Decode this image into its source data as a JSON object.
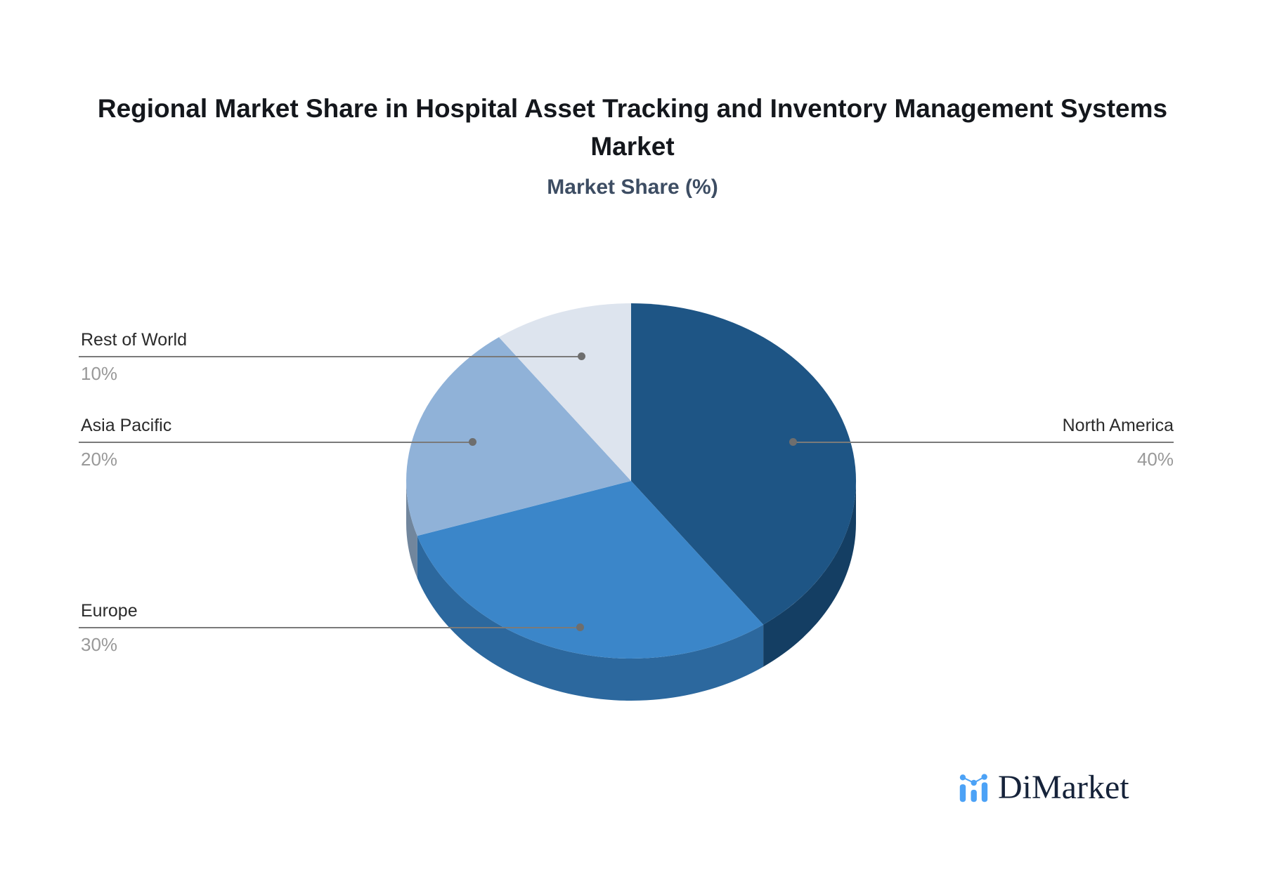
{
  "header": {
    "title_line1": "Regional Market Share in Hospital Asset Tracking and Inventory Management Systems",
    "title_line2": "Market",
    "subtitle": "Market Share (%)"
  },
  "chart_data": {
    "type": "pie",
    "title": "Regional Market Share in Hospital Asset Tracking and Inventory Management Systems Market",
    "subtitle": "Market Share (%)",
    "unit": "%",
    "style": "3d-pie, no legend, callout labels with leader lines and dots",
    "categories": [
      "North America",
      "Europe",
      "Asia Pacific",
      "Rest of World"
    ],
    "values": [
      40,
      30,
      20,
      10
    ],
    "start_angle_deg": -90,
    "direction": "clockwise",
    "colors": [
      "#1E5585",
      "#3B86C9",
      "#90B2D8",
      "#DDE4EE"
    ],
    "side_colors": [
      "#143E63",
      "#2C689E",
      "#71869D",
      "#C3CCDA"
    ],
    "labels": [
      {
        "name": "North America",
        "value": "40%"
      },
      {
        "name": "Europe",
        "value": "30%"
      },
      {
        "name": "Asia Pacific",
        "value": "20%"
      },
      {
        "name": "Rest of World",
        "value": "10%"
      }
    ]
  },
  "branding": {
    "logo_text": "DiMarket",
    "logo_icon": "bar-chart-with-trend-dots-icon",
    "logo_icon_color": "#4CA2F6",
    "logo_text_color": "#16233a"
  }
}
